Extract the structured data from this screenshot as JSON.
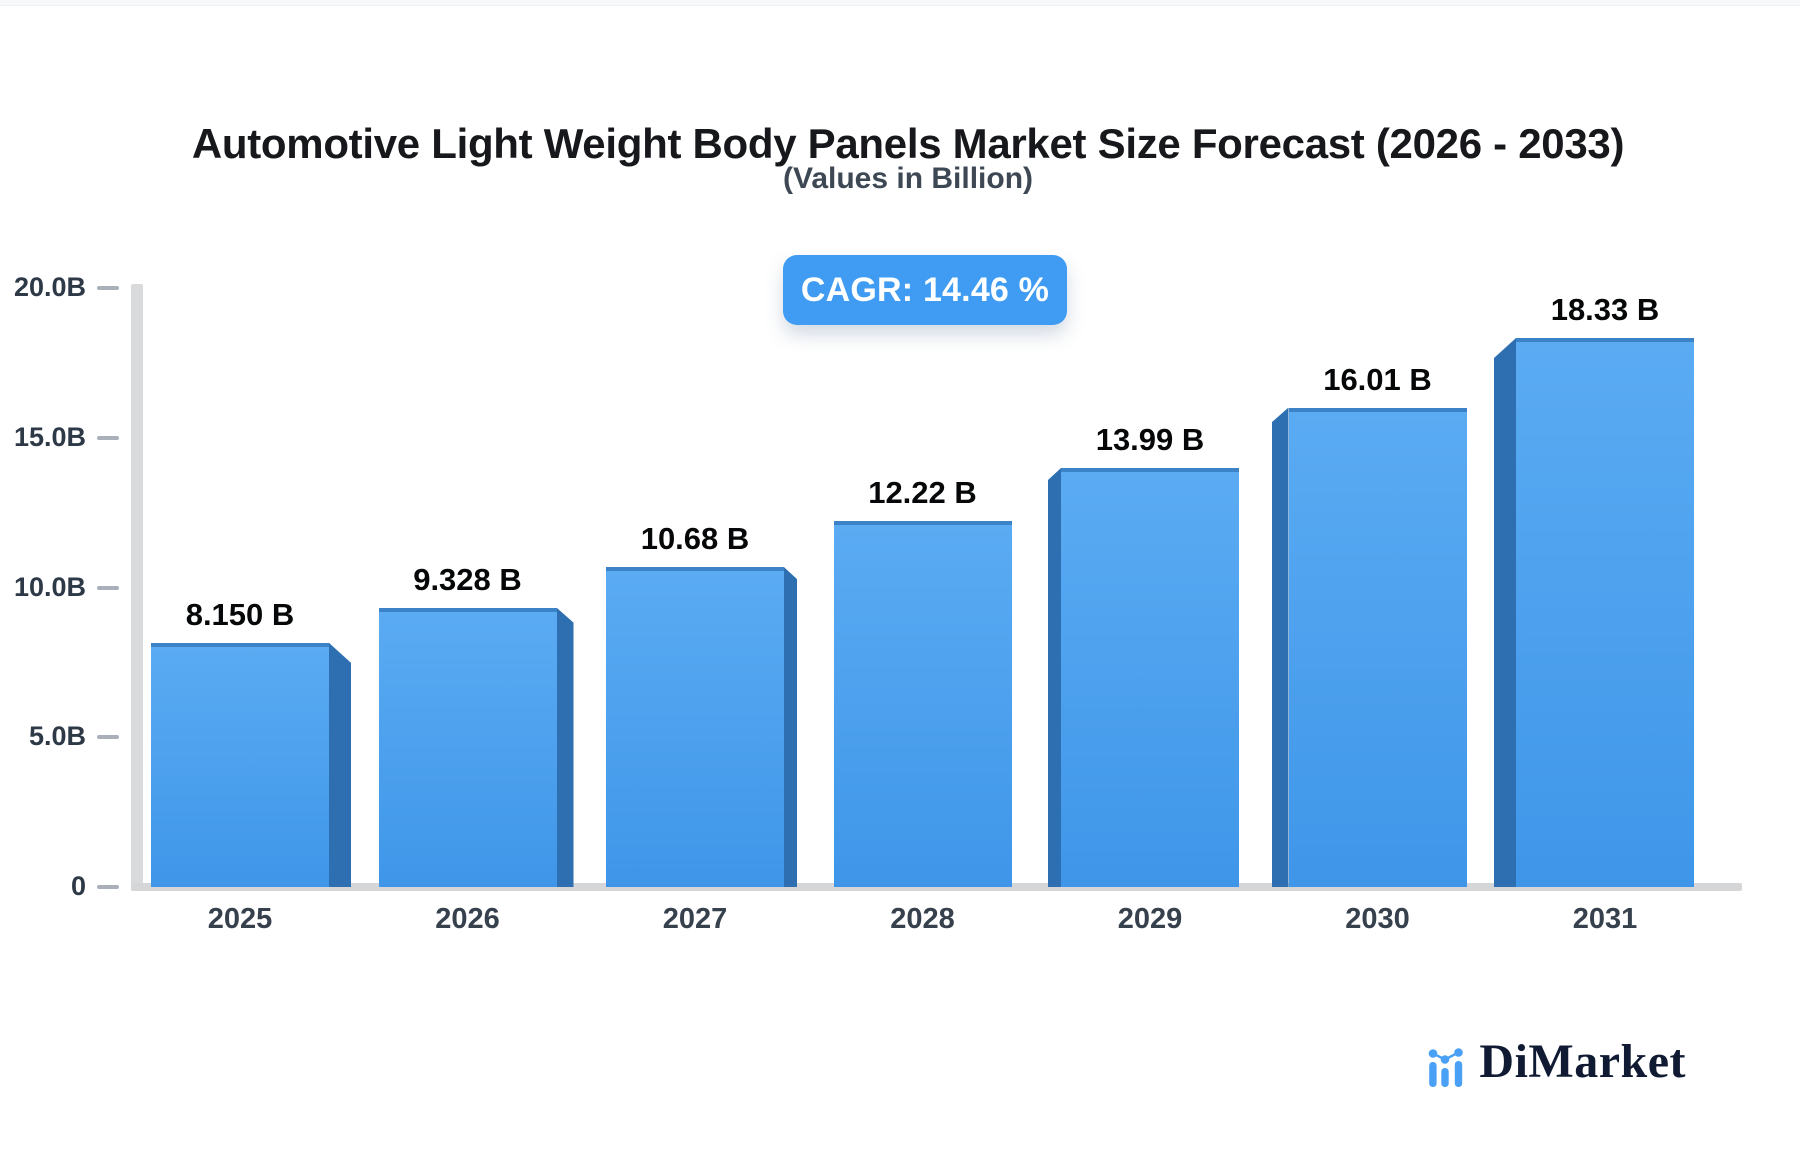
{
  "page": {
    "title": "Automotive Light Weight Body Panels Market Size Forecast (2026 - 2033)",
    "subtitle": "(Values in Billion)",
    "cagr_badge_label": "CAGR: 14.46 %"
  },
  "branding": {
    "logo_text": "DiMarket",
    "logo_icon": "bar-chart-trend-icon"
  },
  "colors": {
    "badge_bg": "#3f9cf2",
    "bar_face_top": "#5aabf2",
    "bar_face_bottom": "#3f96e9",
    "bar_edge": "#3c82c6",
    "bar_side": "#2d6fb0",
    "axis_line": "#d9dadc",
    "baseline": "#d4d6d8",
    "tick_dash": "#a9b0b9",
    "axis_label": "#2e3947",
    "value_label": "#060708",
    "logo_blue": "#4aa0f5",
    "logo_navy": "#101b33"
  },
  "chart_data": {
    "type": "bar",
    "title": "Automotive Light Weight Body Panels Market Size Forecast (2026 - 2033)",
    "subtitle": "(Values in Billion)",
    "unit": "Billion USD",
    "cagr": "14.46 %",
    "categories": [
      "2025",
      "2026",
      "2027",
      "2028",
      "2029",
      "2030",
      "2031"
    ],
    "values": [
      8.15,
      9.328,
      10.68,
      12.22,
      13.99,
      16.01,
      18.33
    ],
    "value_labels": [
      "8.150 B",
      "9.328 B",
      "10.68 B",
      "12.22 B",
      "13.99 B",
      "16.01 B",
      "18.33 B"
    ],
    "ylim": [
      0,
      20
    ],
    "y_ticks": [
      {
        "value": 20,
        "label": "20.0B"
      },
      {
        "value": 15,
        "label": "15.0B"
      },
      {
        "value": 10,
        "label": "10.0B"
      },
      {
        "value": 5,
        "label": "5.0B"
      },
      {
        "value": 0,
        "label": "0"
      }
    ],
    "grid": false,
    "legend": false,
    "style": "3d-extruded-bars, perspective toward center"
  }
}
